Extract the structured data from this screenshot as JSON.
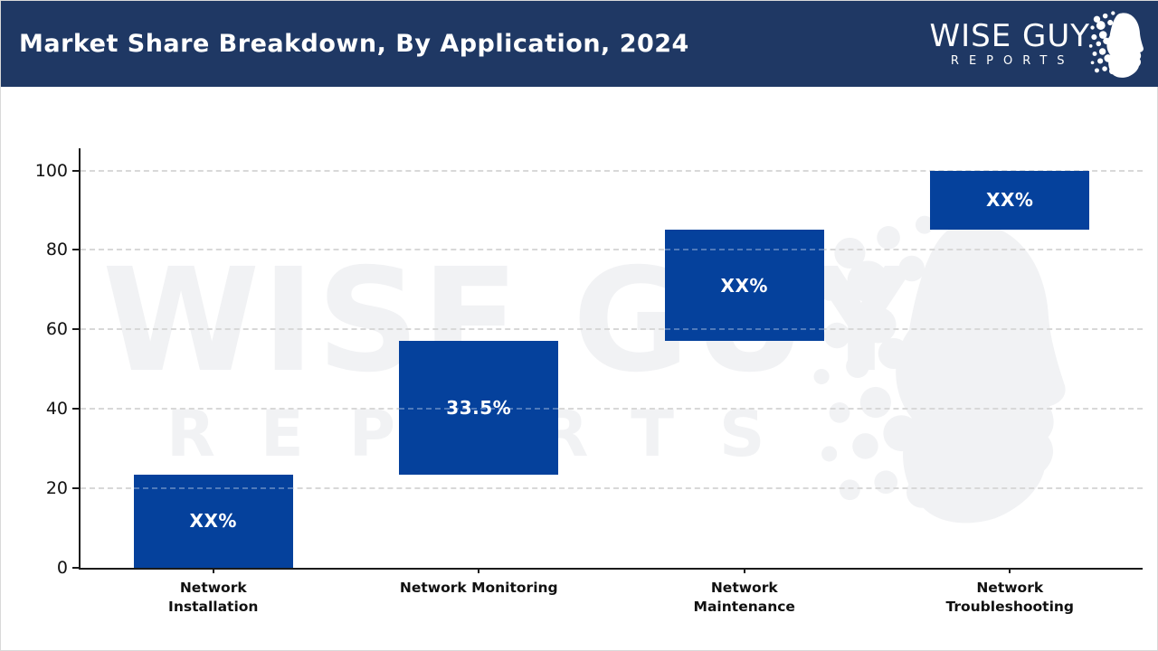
{
  "header": {
    "title": "Market Share Breakdown, By Application, 2024",
    "logo": {
      "wordmark": "WISE GUY",
      "reports": "REPORTS"
    }
  },
  "watermark": {
    "wordmark": "WISE GUY",
    "reports": "REPORTS"
  },
  "chart_data": {
    "type": "bar",
    "subtype": "floating-waterfall",
    "title": "Market Share Breakdown, By Application, 2024",
    "categories": [
      "Network\nInstallation",
      "Network Monitoring",
      "Network\nMaintenance",
      "Network\nTroubleshooting"
    ],
    "bars": [
      {
        "category": "Network Installation",
        "start": 0,
        "end": 23.5,
        "label": "XX%"
      },
      {
        "category": "Network Monitoring",
        "start": 23.5,
        "end": 57,
        "label": "33.5%"
      },
      {
        "category": "Network Maintenance",
        "start": 57,
        "end": 85,
        "label": "XX%"
      },
      {
        "category": "Network Troubleshooting",
        "start": 85,
        "end": 100,
        "label": "XX%"
      }
    ],
    "ylim": [
      0,
      100
    ],
    "yticks": [
      0,
      20,
      40,
      60,
      80,
      100
    ],
    "grid": "horizontal-dashed",
    "legend": "none",
    "bar_color": "#05419c",
    "grid_color": "#d8d8d8",
    "header_color": "#1f3864",
    "watermark_color": "#f1f2f4"
  }
}
